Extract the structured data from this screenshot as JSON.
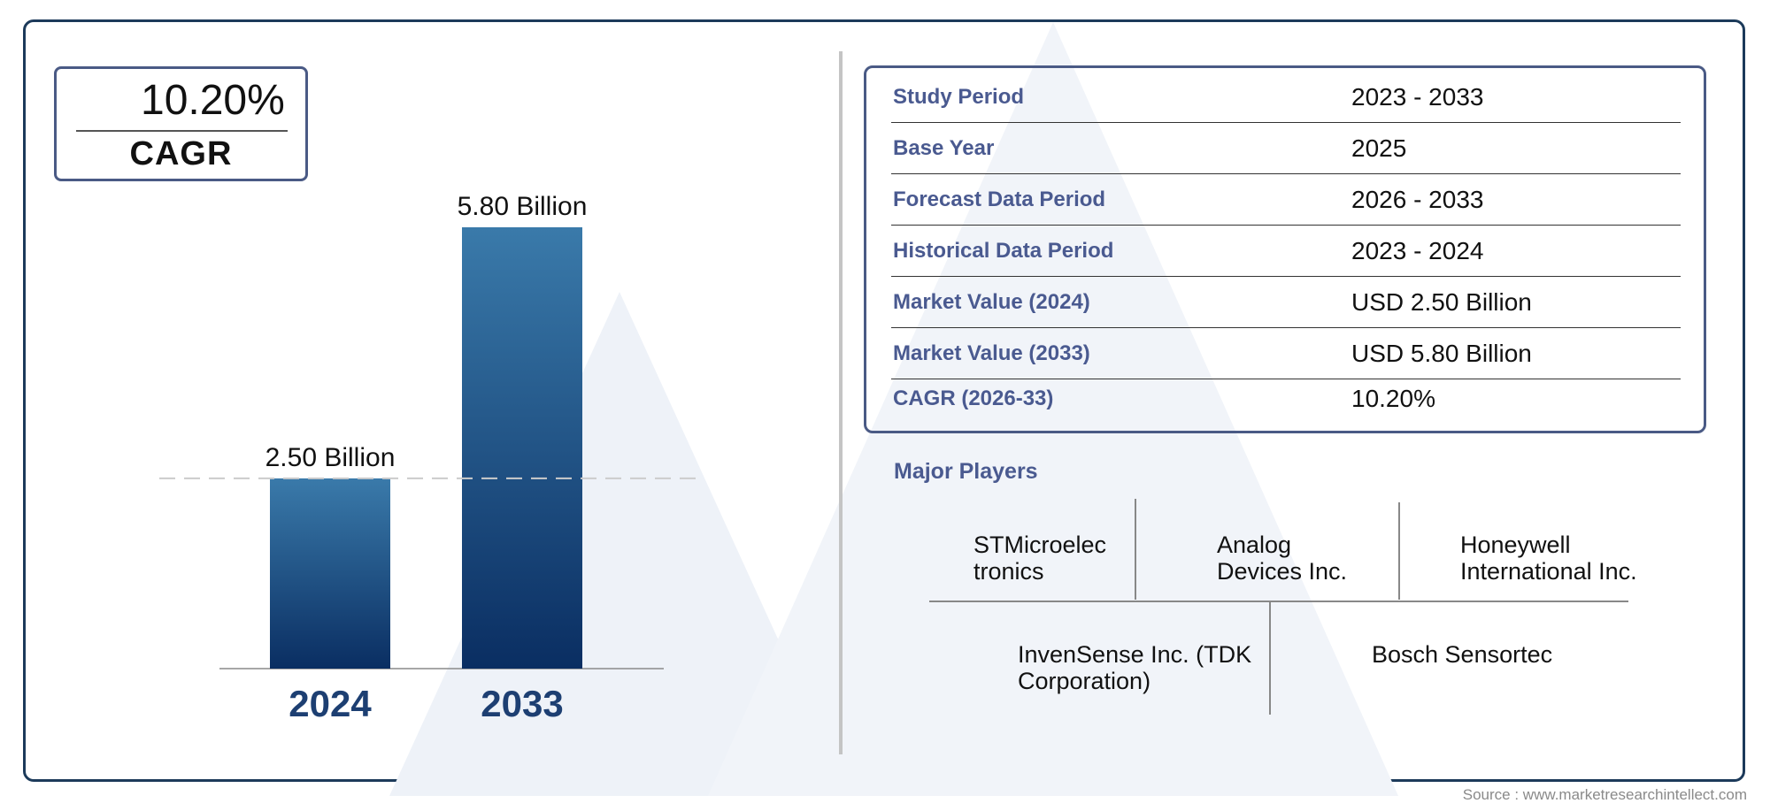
{
  "highlight": {
    "value": "10.20%",
    "label": "CAGR"
  },
  "chart_data": {
    "type": "bar",
    "categories": [
      "2024",
      "2033"
    ],
    "values": [
      2.5,
      5.8
    ],
    "data_labels": [
      "2.50 Billion",
      "5.80 Billion"
    ],
    "ylim": [
      0,
      5.8
    ],
    "reference_line": 2.5,
    "colors": {
      "bar_top": "#3a7aaa",
      "bar_bottom": "#0a2e62",
      "year_label": "#1d3f72"
    }
  },
  "study_info": [
    {
      "label": "Study Period",
      "value": "2023 - 2033"
    },
    {
      "label": "Base Year",
      "value": "2025"
    },
    {
      "label": "Forecast Data Period",
      "value": "2026 - 2033"
    },
    {
      "label": "Historical Data Period",
      "value": "2023 - 2024"
    },
    {
      "label": "Market Value (2024)",
      "value": "USD 2.50 Billion"
    },
    {
      "label": "Market Value (2033)",
      "value": "USD 5.80 Billion"
    },
    {
      "label": "CAGR (2026-33)",
      "value": "10.20%"
    }
  ],
  "players": {
    "title": "Major Players",
    "items": [
      [
        "STMicroelec",
        "tronics"
      ],
      [
        "Analog",
        "Devices Inc."
      ],
      [
        "Honeywell",
        "International Inc."
      ],
      [
        "InvenSense Inc. (TDK",
        "Corporation)"
      ],
      [
        "Bosch Sensortec"
      ]
    ]
  },
  "source": "Source : www.marketresearchintellect.com"
}
